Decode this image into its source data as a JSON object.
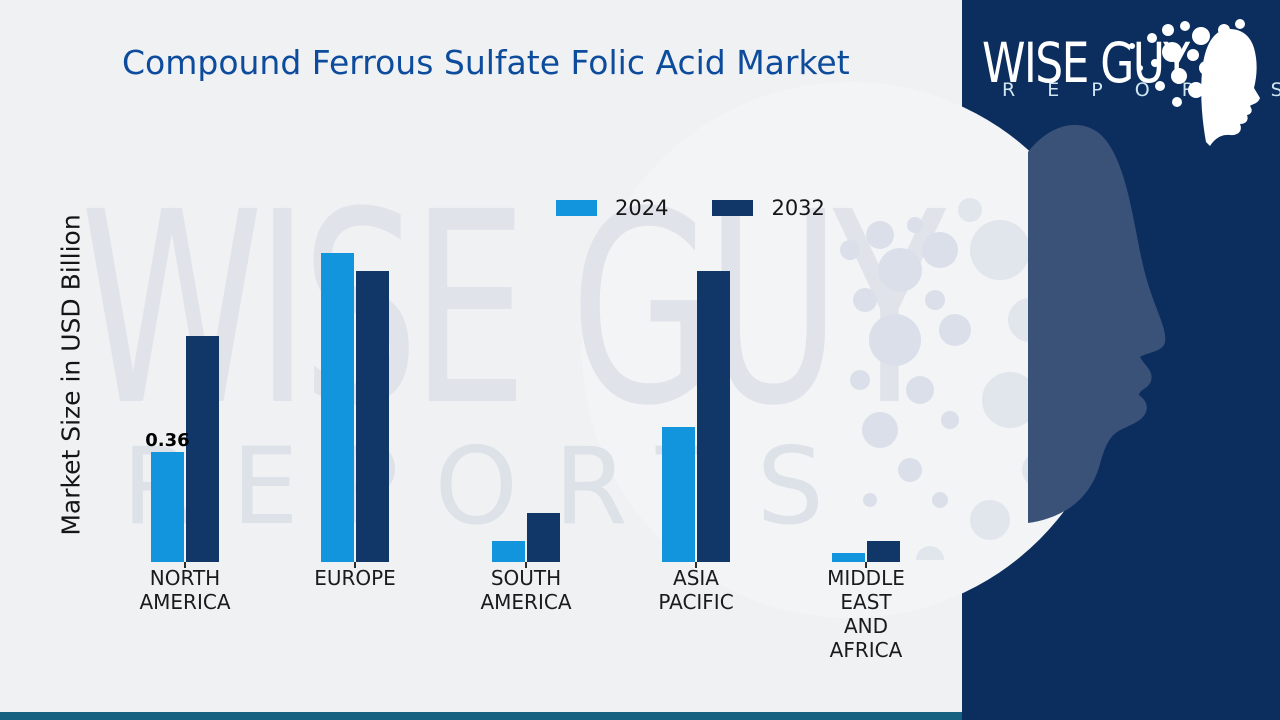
{
  "brand": {
    "logo_line1": "WISE GUY",
    "logo_line2": "R E P O R T S",
    "panel_color": "#0b2e5f",
    "accent_teal": "#15617f"
  },
  "watermark": {
    "line1": "WISE GUY",
    "line2": "REPORTS"
  },
  "chart_data": {
    "type": "bar",
    "title": "Compound Ferrous Sulfate Folic Acid Market",
    "ylabel": "Market Size in USD Billion",
    "xlabel": "",
    "categories": [
      "NORTH AMERICA",
      "EUROPE",
      "SOUTH AMERICA",
      "ASIA PACIFIC",
      "MIDDLE EAST AND AFRICA"
    ],
    "category_label_lines": [
      [
        "NORTH",
        "AMERICA"
      ],
      [
        "EUROPE"
      ],
      [
        "SOUTH",
        "AMERICA"
      ],
      [
        "ASIA",
        "PACIFIC"
      ],
      [
        "MIDDLE",
        "EAST",
        "AND",
        "AFRICA"
      ]
    ],
    "series": [
      {
        "name": "2024",
        "color": "#1295dd",
        "values": [
          0.36,
          1.01,
          0.07,
          0.44,
          0.03
        ]
      },
      {
        "name": "2032",
        "color": "#103768",
        "values": [
          0.74,
          0.95,
          0.16,
          0.95,
          0.07
        ]
      }
    ],
    "point_labels": [
      {
        "series": "2024",
        "category": "NORTH AMERICA",
        "text": "0.36"
      }
    ],
    "ylim": [
      0,
      1.05
    ],
    "grid": false,
    "legend_position": "top-center",
    "axis_line": false
  }
}
